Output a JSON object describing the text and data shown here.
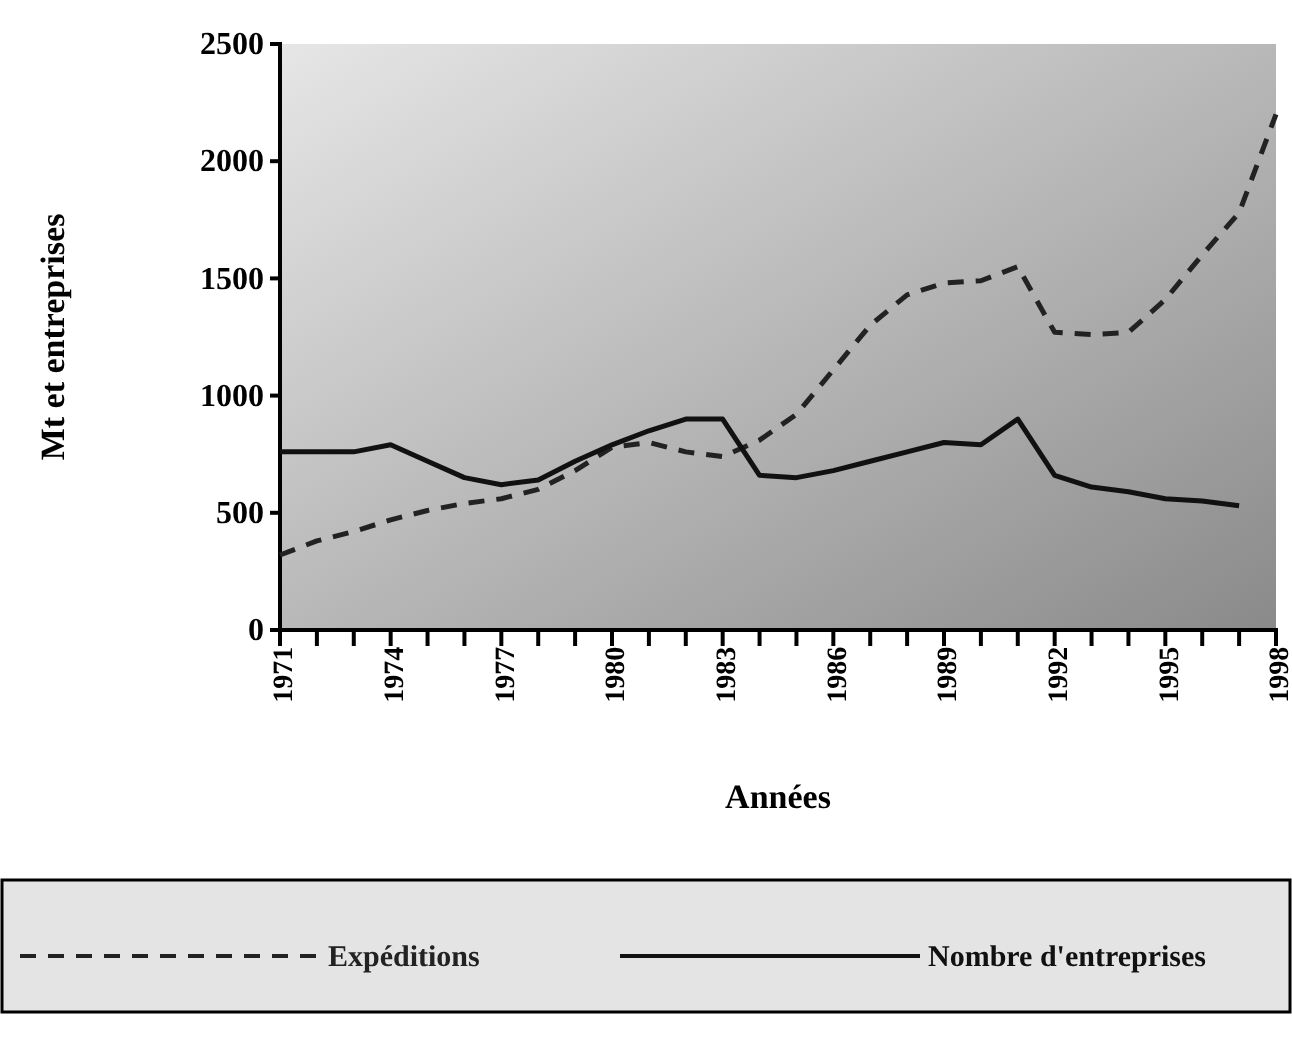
{
  "chart_data": {
    "type": "line",
    "xlabel": "Années",
    "ylabel": "Mt et entreprises",
    "x": [
      1971,
      1972,
      1973,
      1974,
      1975,
      1976,
      1977,
      1978,
      1979,
      1980,
      1981,
      1982,
      1983,
      1984,
      1985,
      1986,
      1987,
      1988,
      1989,
      1990,
      1991,
      1992,
      1993,
      1994,
      1995,
      1996,
      1997,
      1998
    ],
    "series": [
      {
        "name": "Expéditions",
        "color": "#222222",
        "line_style": "dashed",
        "values": [
          320,
          380,
          420,
          470,
          510,
          540,
          560,
          600,
          680,
          780,
          800,
          760,
          740,
          810,
          920,
          1110,
          1300,
          1430,
          1480,
          1490,
          1550,
          1270,
          1260,
          1270,
          1410,
          1600,
          1780,
          2200
        ]
      },
      {
        "name": "Nombre d'entreprises",
        "color": "#111111",
        "line_style": "solid",
        "values": [
          760,
          760,
          760,
          790,
          720,
          650,
          620,
          640,
          720,
          790,
          850,
          900,
          900,
          660,
          650,
          680,
          720,
          760,
          800,
          790,
          900,
          660,
          610,
          590,
          560,
          550,
          530,
          null
        ]
      }
    ],
    "xlim": [
      1971,
      1998
    ],
    "xticks": [
      1971,
      {
        "value": 1972,
        "label": null
      },
      {
        "value": 1973,
        "label": null
      },
      1974,
      {
        "value": 1975,
        "label": null
      },
      {
        "value": 1976,
        "label": null
      },
      1977,
      {
        "value": 1978,
        "label": null
      },
      {
        "value": 1979,
        "label": null
      },
      1980,
      {
        "value": 1981,
        "label": null
      },
      {
        "value": 1982,
        "label": null
      },
      1983,
      {
        "value": 1984,
        "label": null
      },
      {
        "value": 1985,
        "label": null
      },
      1986,
      {
        "value": 1987,
        "label": null
      },
      {
        "value": 1988,
        "label": null
      },
      1989,
      {
        "value": 1990,
        "label": null
      },
      {
        "value": 1991,
        "label": null
      },
      1992,
      {
        "value": 1993,
        "label": null
      },
      {
        "value": 1994,
        "label": null
      },
      1995,
      {
        "value": 1996,
        "label": null
      },
      {
        "value": 1997,
        "label": null
      },
      1998
    ],
    "ylim": [
      0,
      2500
    ],
    "yticks": [
      0,
      500,
      1000,
      1500,
      2000,
      2500
    ],
    "grid": false,
    "legend": "bottom",
    "marker": "none"
  }
}
